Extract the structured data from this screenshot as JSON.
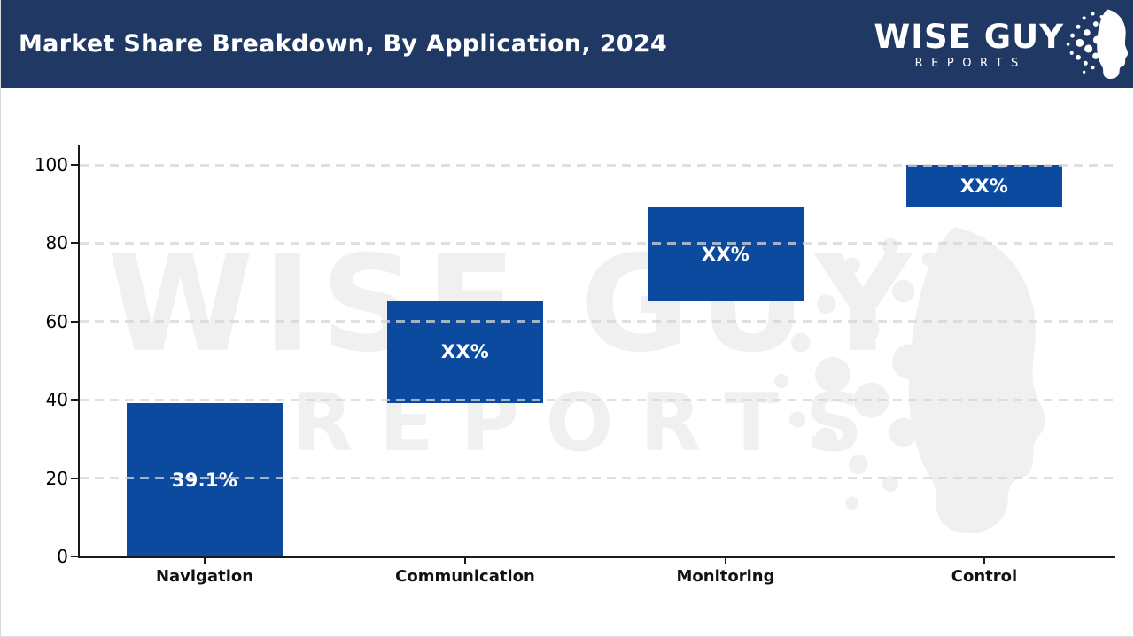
{
  "header": {
    "title": "Market Share Breakdown, By Application, 2024",
    "background_color": "#1f3864",
    "logo": {
      "line1": "WISE GUY",
      "line2": "REPORTS"
    }
  },
  "watermark": {
    "line1": "WISE GUY",
    "line2": "REPORTS"
  },
  "chart_data": {
    "type": "bar",
    "subtype": "waterfall",
    "title": "Market Share Breakdown, By Application, 2024",
    "categories": [
      "Navigation",
      "Communication",
      "Monitoring",
      "Control"
    ],
    "bars": [
      {
        "category": "Navigation",
        "start": 0,
        "end": 39.1,
        "label": "39.1%"
      },
      {
        "category": "Communication",
        "start": 39.1,
        "end": 65.2,
        "label": "XX%"
      },
      {
        "category": "Monitoring",
        "start": 65.2,
        "end": 89.2,
        "label": "XX%"
      },
      {
        "category": "Control",
        "start": 89.2,
        "end": 100,
        "label": "XX%"
      }
    ],
    "xlabel": "",
    "ylabel": "",
    "ylim": [
      0,
      100
    ],
    "yticks": [
      0,
      20,
      40,
      60,
      80,
      100
    ],
    "grid": "horizontal-dashed-over-bars",
    "legend": "none",
    "bar_color": "#0b4a9f",
    "bar_label_color": "#ffffff",
    "axis_color": "#1a1a1a"
  }
}
